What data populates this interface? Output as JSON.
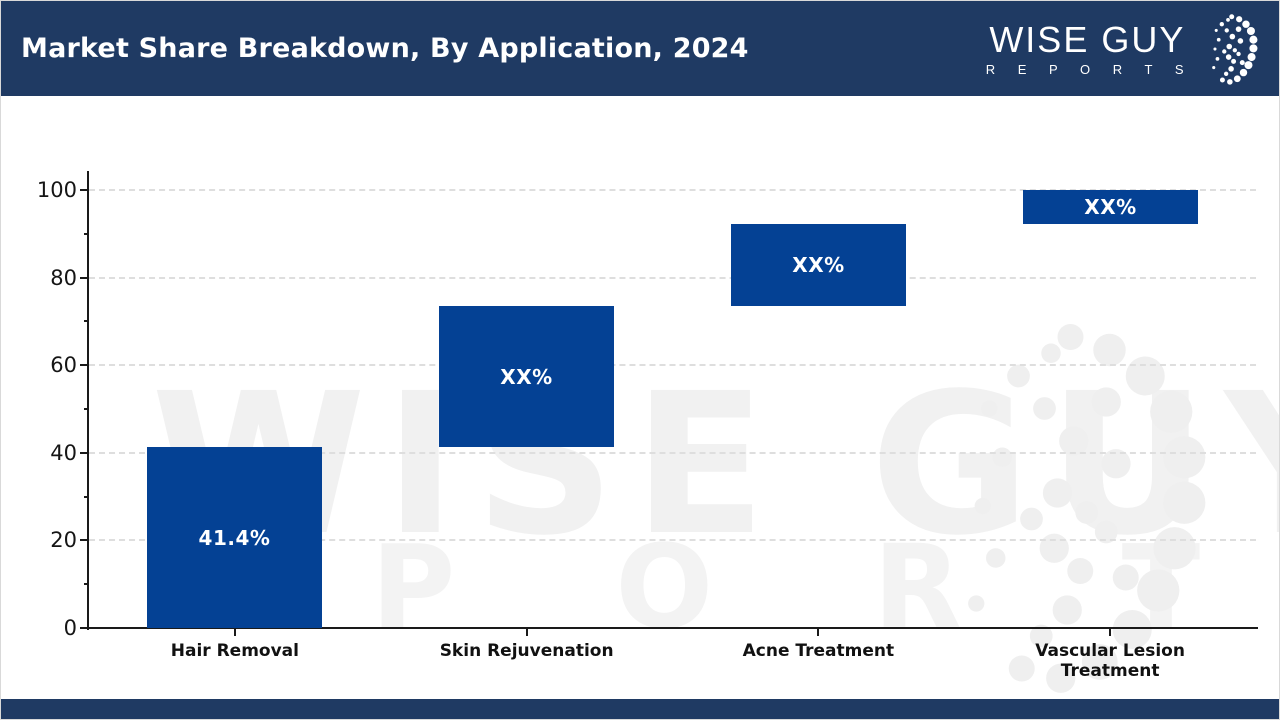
{
  "header": {
    "title": "Market Share Breakdown, By Application, 2024",
    "logo": {
      "wise_guy": "WISE GUY",
      "reports": "R E P O R T S"
    },
    "bg_color": "#1f3a63"
  },
  "watermark": {
    "line1": "WISE GUY",
    "line2": "P O R T S",
    "head_icon": "dotted-head-profile"
  },
  "chart_data": {
    "type": "bar",
    "subtype": "waterfall",
    "title": "Market Share Breakdown, By Application, 2024",
    "categories": [
      "Hair Removal",
      "Skin Rejuvenation",
      "Acne Treatment",
      "Vascular Lesion Treatment"
    ],
    "segments": [
      {
        "category": "Hair Removal",
        "start": 0,
        "end": 41.4,
        "label": "41.4%"
      },
      {
        "category": "Skin Rejuvenation",
        "start": 41.4,
        "end": 73.5,
        "label": "XX%"
      },
      {
        "category": "Acne Treatment",
        "start": 73.5,
        "end": 92.2,
        "label": "XX%"
      },
      {
        "category": "Vascular Lesion Treatment",
        "start": 92.2,
        "end": 100,
        "label": "XX%"
      }
    ],
    "xlabel": "",
    "ylabel": "",
    "ylim": [
      0,
      100
    ],
    "yticks": [
      0,
      20,
      40,
      60,
      80,
      100
    ],
    "minor_yticks": [
      10,
      30,
      50,
      70,
      90
    ],
    "grid": "horizontal dashed, no gridline at 0",
    "legend": "none",
    "bar_color": "#044194",
    "bar_label_color": "#ffffff",
    "gridline_color": "#dedede",
    "axis_color": "#1a1a1a",
    "header_footer_color": "#1f3a63"
  }
}
